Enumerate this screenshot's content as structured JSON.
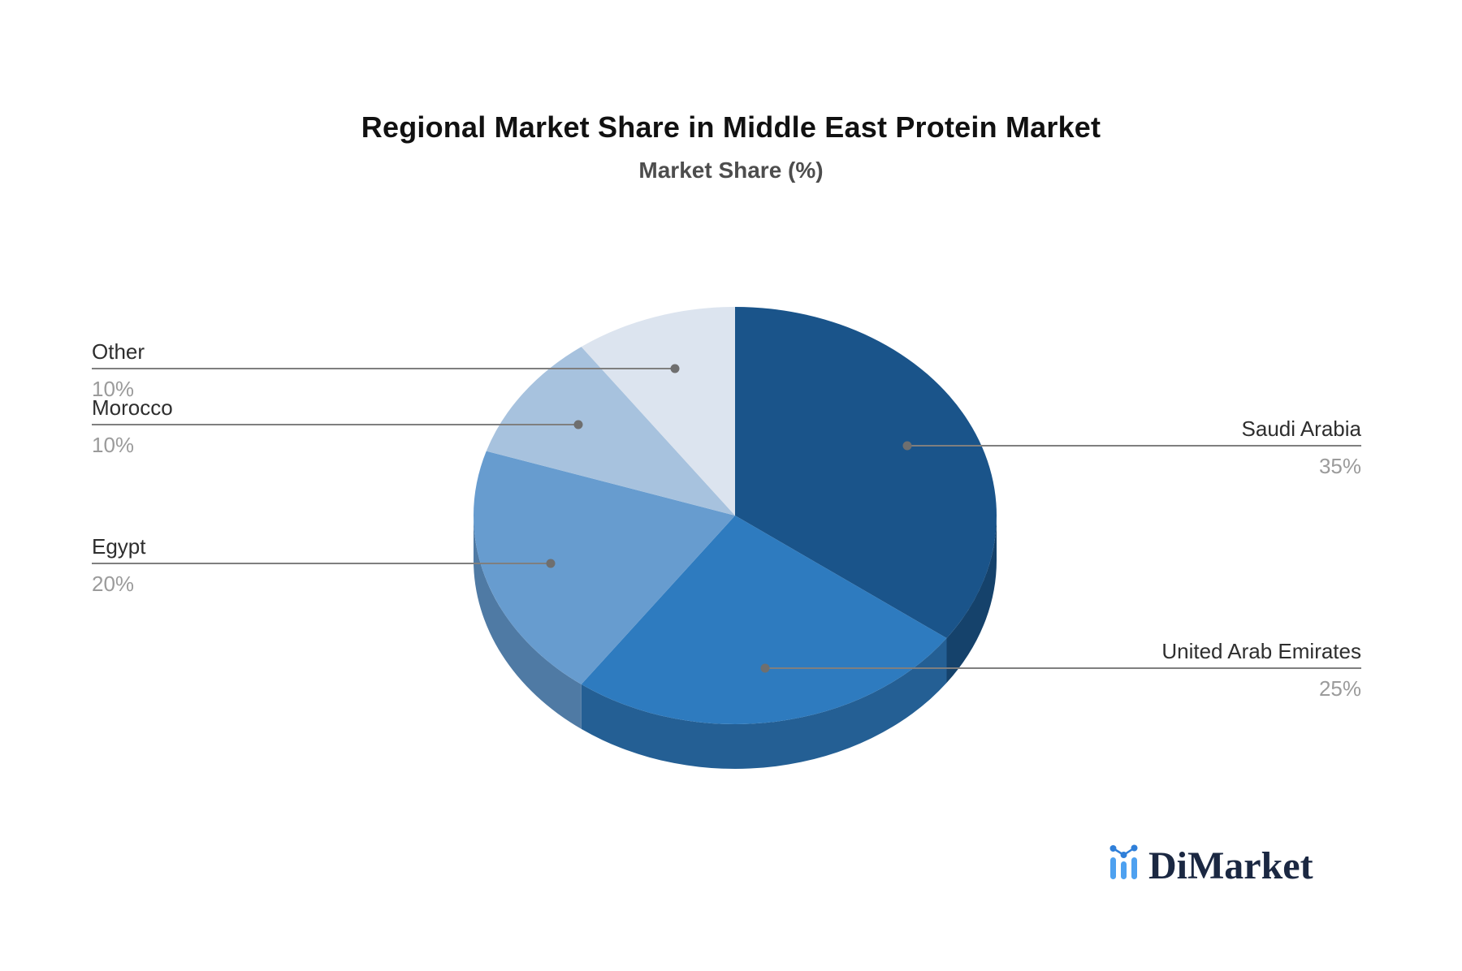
{
  "chart_data": {
    "type": "pie",
    "title": "Regional Market Share in Middle East Protein Market",
    "subtitle": "Market Share (%)",
    "unit": "%",
    "direction": "clockwise",
    "start_angle_deg": 0,
    "legend": "none",
    "effect": "3d-depth",
    "leader_line_color": "#7f7f7f",
    "leader_dot_color": "#6f6f6f",
    "slices": [
      {
        "label": "Saudi Arabia",
        "value": 35,
        "value_label": "35%",
        "color": "#1A548A",
        "side_color": "#15426B",
        "label_side": "right"
      },
      {
        "label": "United Arab Emirates",
        "value": 25,
        "value_label": "25%",
        "color": "#2E7BBF",
        "side_color": "#245F94",
        "label_side": "right"
      },
      {
        "label": "Egypt",
        "value": 20,
        "value_label": "20%",
        "color": "#679CCF",
        "side_color": "#4F7AA4",
        "label_side": "left"
      },
      {
        "label": "Morocco",
        "value": 10,
        "value_label": "10%",
        "color": "#A7C2DE",
        "side_color": "#8AA6C2",
        "label_side": "left"
      },
      {
        "label": "Other",
        "value": 10,
        "value_label": "10%",
        "color": "#DCE4EF",
        "side_color": "#BCC9D9",
        "label_side": "left"
      }
    ]
  },
  "logo": {
    "text": "DiMarket",
    "icon": "mini-bar-chart-trend-icon",
    "text_color": "#1B2842",
    "bar_color": "#4EA1F0",
    "accent_color": "#2F7FD9"
  }
}
